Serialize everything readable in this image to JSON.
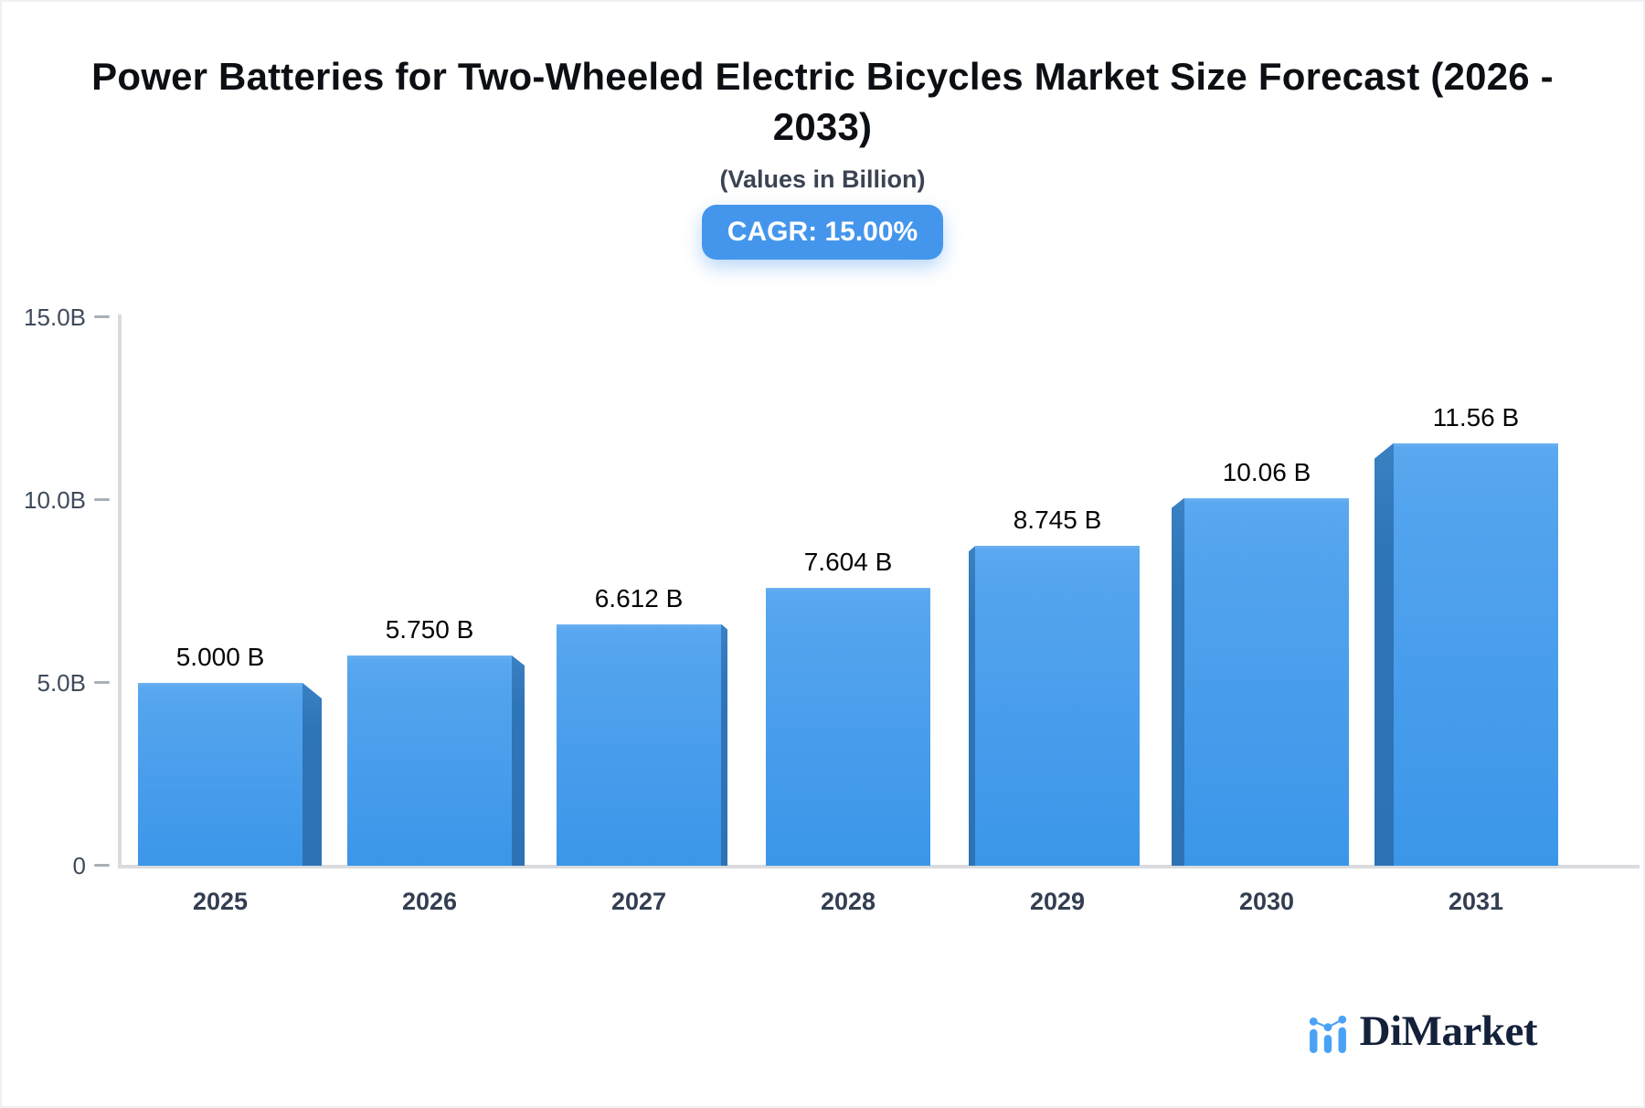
{
  "header": {
    "title_line1": "Power Batteries for Two-Wheeled Electric Bicycles Market Size Forecast (2026 -",
    "title_line2": "2033)",
    "subtitle": "(Values in Billion)",
    "cagr_badge": "CAGR: 15.00%"
  },
  "chart_data": {
    "type": "bar",
    "title": "Power Batteries for Two-Wheeled Electric Bicycles Market Size Forecast (2026 - 2033)",
    "subtitle": "(Values in Billion)",
    "cagr": "15.00%",
    "categories": [
      "2025",
      "2026",
      "2027",
      "2028",
      "2029",
      "2030",
      "2031"
    ],
    "values": [
      5.0,
      5.75,
      6.612,
      7.604,
      8.745,
      10.06,
      11.56
    ],
    "value_labels": [
      "5.000 B",
      "5.750 B",
      "6.612 B",
      "7.604 B",
      "8.745 B",
      "10.06 B",
      "11.56 B"
    ],
    "unit": "Billion",
    "ylim": [
      0,
      15
    ],
    "yticks": [
      {
        "label": "15.0B",
        "value": 15
      },
      {
        "label": "10.0B",
        "value": 10
      },
      {
        "label": "5.0B",
        "value": 5
      },
      {
        "label": "0",
        "value": 0
      }
    ],
    "grid": false,
    "legend": "none",
    "bar_style": "3d-perspective"
  },
  "footer": {
    "logo_text": "DiMarket"
  },
  "colors": {
    "bar_face_top": "#5aa8ef",
    "bar_face_bottom": "#3b96e9",
    "bar_side": "#2e75b7",
    "badge_bg": "#4496ec",
    "axis": "#d9dbdf",
    "logo_blue": "#4aa2f6",
    "logo_text": "#14213a"
  }
}
